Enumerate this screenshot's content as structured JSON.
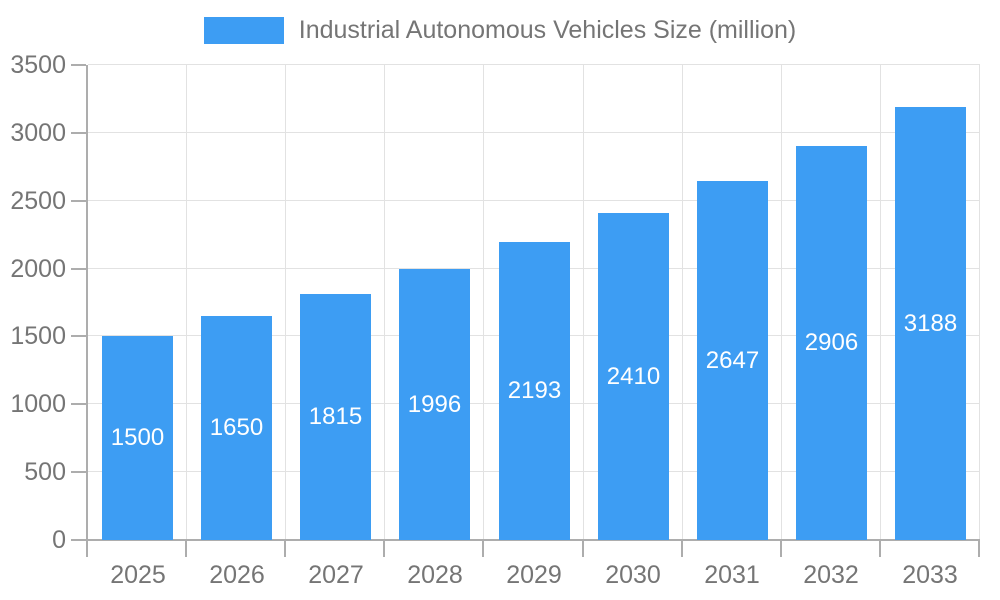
{
  "chart_data": {
    "type": "bar",
    "title": "Industrial Autonomous Vehicles Size (million)",
    "legend_position": "top-center",
    "legend_entries": [
      "Industrial Autonomous Vehicles Size (million)"
    ],
    "categories": [
      "2025",
      "2026",
      "2027",
      "2028",
      "2029",
      "2030",
      "2031",
      "2032",
      "2033"
    ],
    "series": [
      {
        "name": "Industrial Autonomous Vehicles Size (million)",
        "values": [
          1500,
          1650,
          1815,
          1996,
          2193,
          2410,
          2647,
          2906,
          3188
        ]
      }
    ],
    "bar_value_labels": [
      "1500",
      "1650",
      "1815",
      "1996",
      "2193",
      "2410",
      "2647",
      "2906",
      "3188"
    ],
    "xlabel": "",
    "ylabel": "",
    "ylim": [
      0,
      3500
    ],
    "yticks": [
      0,
      500,
      1000,
      1500,
      2000,
      2500,
      3000,
      3500
    ],
    "grid": true,
    "colors": {
      "bar": "#3d9df3",
      "bar_label": "#ffffff",
      "axis_text": "#757575",
      "axis_line": "#adadad",
      "gridline": "#e2e2e2",
      "background": "#ffffff"
    }
  }
}
